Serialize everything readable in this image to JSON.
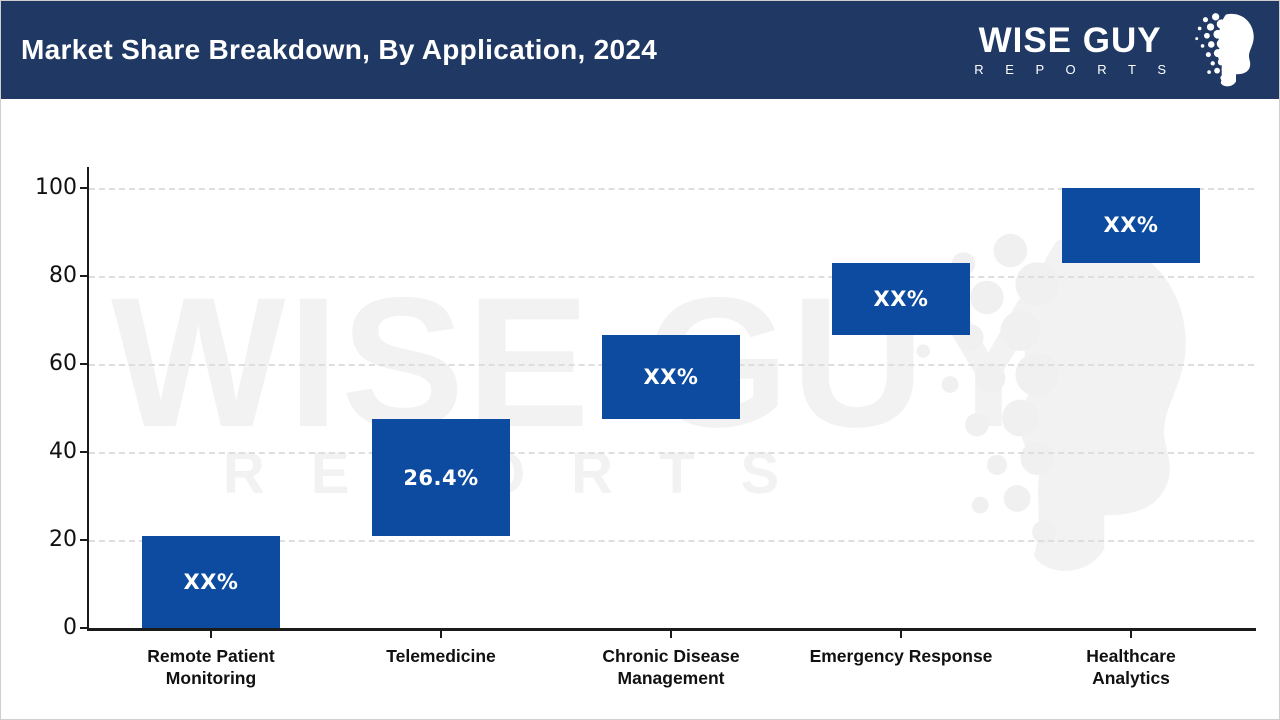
{
  "header": {
    "title": "Market Share Breakdown, By Application, 2024",
    "logo": {
      "line1": "WISE GUY",
      "line2": "R E P O R T S"
    }
  },
  "watermark": {
    "line1": "WISE GUY",
    "line2": "REPORTS"
  },
  "colors": {
    "header_bg": "#1f3864",
    "bar": "#0d4ba0",
    "grid": "#dedede",
    "axis": "#1a1a1a",
    "bar_label": "#ffffff"
  },
  "chart_data": {
    "type": "bar",
    "variant": "waterfall-stacked-percentage",
    "title": "Market Share Breakdown, By Application, 2024",
    "xlabel": "",
    "ylabel": "",
    "ylim": [
      0,
      100
    ],
    "y_ticks": [
      0,
      20,
      40,
      60,
      80,
      100
    ],
    "grid": "horizontal-dashed",
    "legend": "none",
    "categories": [
      "Remote Patient Monitoring",
      "Telemedicine",
      "Chronic Disease Management",
      "Emergency Response",
      "Healthcare Analytics"
    ],
    "category_lines": [
      [
        "Remote Patient",
        "Monitoring"
      ],
      [
        "Telemedicine"
      ],
      [
        "Chronic Disease",
        "Management"
      ],
      [
        "Emergency Response"
      ],
      [
        "Healthcare",
        "Analytics"
      ]
    ],
    "segments": [
      {
        "category": "Remote Patient Monitoring",
        "start": 0,
        "end": 21,
        "label": "XX%"
      },
      {
        "category": "Telemedicine",
        "start": 21,
        "end": 47.4,
        "label": "26.4%"
      },
      {
        "category": "Chronic Disease Management",
        "start": 47.4,
        "end": 66.5,
        "label": "XX%"
      },
      {
        "category": "Emergency Response",
        "start": 66.5,
        "end": 83,
        "label": "XX%"
      },
      {
        "category": "Healthcare Analytics",
        "start": 83,
        "end": 100,
        "label": "XX%"
      }
    ]
  }
}
